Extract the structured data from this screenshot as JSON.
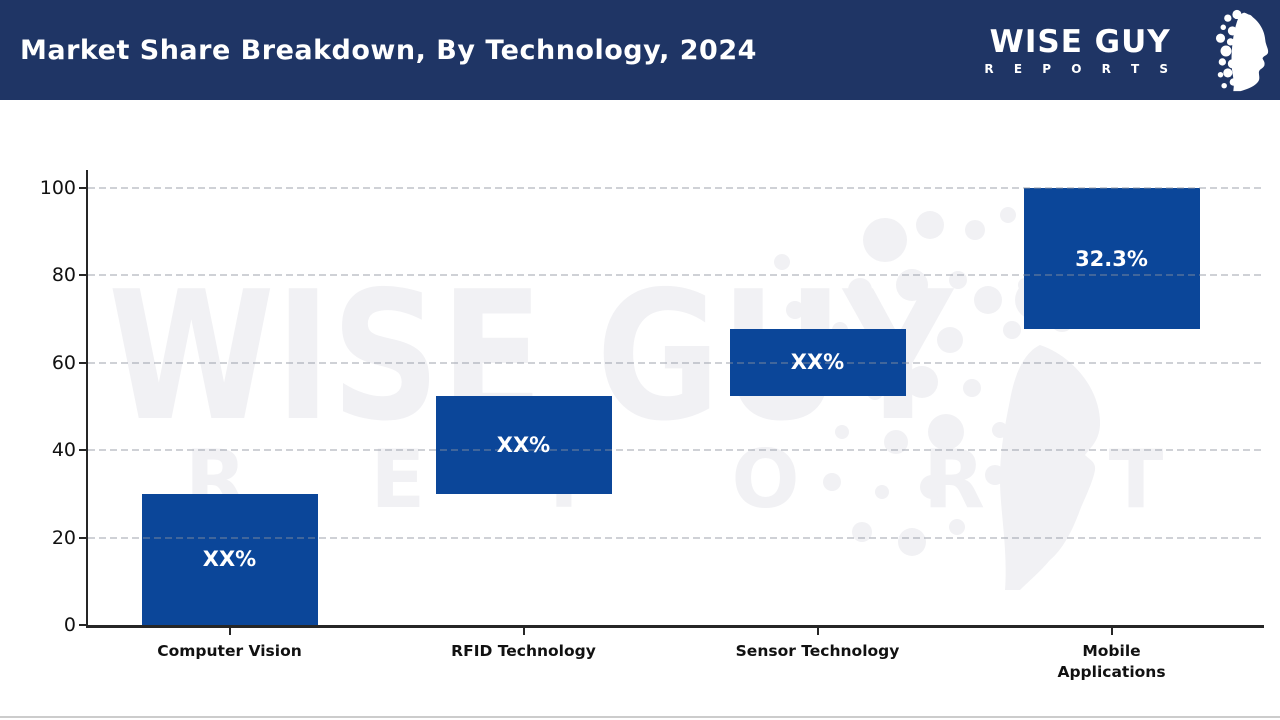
{
  "header": {
    "title": "Market Share Breakdown, By Technology, 2024",
    "bg_color": "#1f3565",
    "logo": {
      "wordmark": "WISE GUY",
      "subtext": "R E P O R T S"
    }
  },
  "watermark": {
    "wordmark": "WISE GUY",
    "subtext": "R E P O R T S"
  },
  "chart_data": {
    "type": "bar",
    "subtype": "floating-waterfall",
    "title": "Market Share Breakdown, By Technology, 2024",
    "categories": [
      "Computer Vision",
      "RFID Technology",
      "Sensor Technology",
      "Mobile Applications"
    ],
    "tick_labels": [
      "Computer Vision",
      "RFID Technology",
      "Sensor Technology",
      "Mobile\nApplications"
    ],
    "segments": [
      {
        "category": "Computer Vision",
        "start": 0,
        "end": 30,
        "label": "XX%"
      },
      {
        "category": "RFID Technology",
        "start": 30,
        "end": 52.5,
        "label": "XX%"
      },
      {
        "category": "Sensor Technology",
        "start": 52.5,
        "end": 67.7,
        "label": "XX%"
      },
      {
        "category": "Mobile Applications",
        "start": 67.7,
        "end": 100,
        "label": "32.3%"
      }
    ],
    "ylim": [
      0,
      100
    ],
    "yticks": [
      0,
      20,
      40,
      60,
      80,
      100
    ],
    "grid": {
      "axis": "y",
      "style": "dashed"
    },
    "legend": "none",
    "bar_color": "#0b4699",
    "bar_label_color": "#ffffff",
    "axis_color": "#262626",
    "tick_label_color": "#111111",
    "background": "#ffffff"
  }
}
